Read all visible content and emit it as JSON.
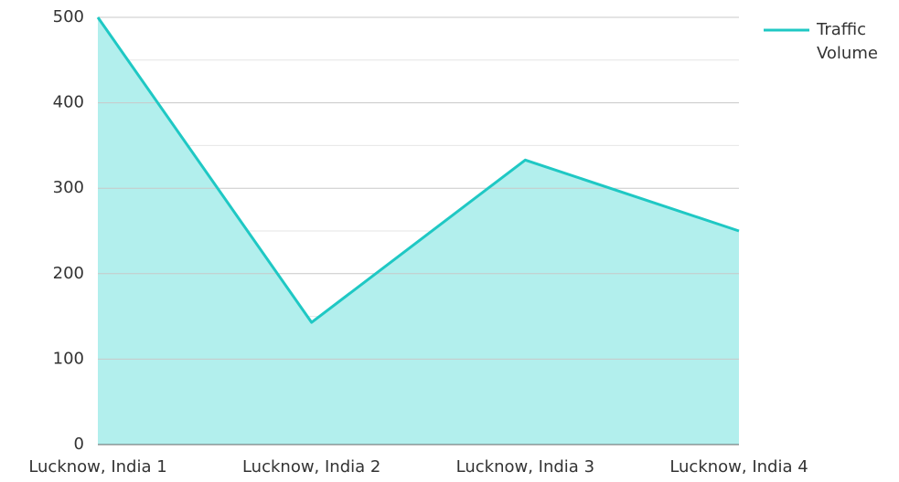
{
  "chart_data": {
    "type": "area",
    "categories": [
      "Lucknow, India 1",
      "Lucknow, India 2",
      "Lucknow, India 3",
      "Lucknow, India 4"
    ],
    "series": [
      {
        "name": "Traffic Volume",
        "color": "#1fc8c4",
        "fill": "#b2efed",
        "values": [
          500,
          143,
          333,
          250
        ]
      }
    ],
    "ylim": [
      0,
      500
    ],
    "yticks": [
      0,
      100,
      200,
      300,
      400,
      500
    ],
    "grid": true,
    "legend": "top-right"
  }
}
